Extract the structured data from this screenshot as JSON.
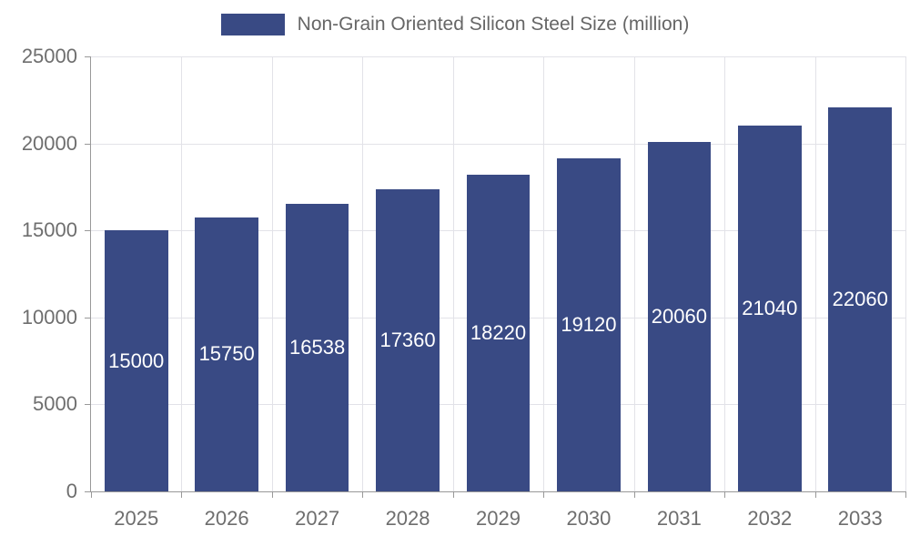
{
  "chart_data": {
    "type": "bar",
    "title": "",
    "legend_position": "top",
    "legend": [
      "Non-Grain Oriented Silicon Steel Size (million)"
    ],
    "categories": [
      "2025",
      "2026",
      "2027",
      "2028",
      "2029",
      "2030",
      "2031",
      "2032",
      "2033"
    ],
    "series": [
      {
        "name": "Non-Grain Oriented Silicon Steel Size (million)",
        "values": [
          15000,
          15750,
          16538,
          17360,
          18220,
          19120,
          20060,
          21040,
          22060
        ]
      }
    ],
    "xlabel": "",
    "ylabel": "",
    "ylim": [
      0,
      25000
    ],
    "yticks": [
      0,
      5000,
      10000,
      15000,
      20000,
      25000
    ],
    "grid": true,
    "bar_labels_visible": true,
    "colors": {
      "bar": "#394A84",
      "bar_label": "#FFFFFF",
      "grid_line": "#E2E2E8",
      "axis_line": "#999999",
      "axis_text": "#6E6E6E",
      "legend_text": "#666666",
      "background": "#FFFFFF"
    }
  }
}
